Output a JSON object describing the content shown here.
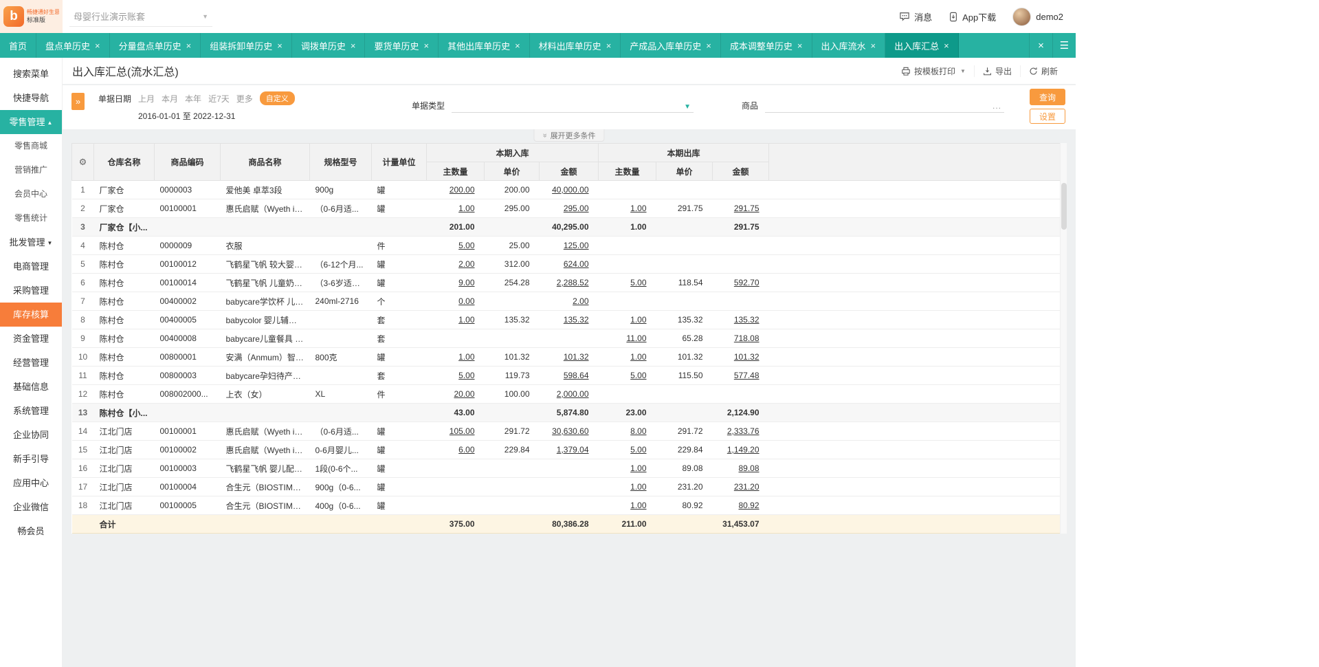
{
  "colors": {
    "teal": "#27b2a2",
    "tealdark": "#0e9a8a",
    "orange": "#f89a3e",
    "orangedeep": "#f77d3a"
  },
  "topbar": {
    "logo": {
      "icon_glyph": "b",
      "brand": "畅捷通好生意",
      "edition": "标准版"
    },
    "account": "母婴行业演示账套",
    "messages_label": "消息",
    "app_download_label": "App下载",
    "username": "demo2"
  },
  "tabbar": {
    "tabs": [
      {
        "label": "首页",
        "closable": false,
        "active": false
      },
      {
        "label": "盘点单历史",
        "closable": true,
        "active": false
      },
      {
        "label": "分量盘点单历史",
        "closable": true,
        "active": false
      },
      {
        "label": "组装拆卸单历史",
        "closable": true,
        "active": false
      },
      {
        "label": "调拨单历史",
        "closable": true,
        "active": false
      },
      {
        "label": "要货单历史",
        "closable": true,
        "active": false
      },
      {
        "label": "其他出库单历史",
        "closable": true,
        "active": false
      },
      {
        "label": "材料出库单历史",
        "closable": true,
        "active": false
      },
      {
        "label": "产成品入库单历史",
        "closable": true,
        "active": false
      },
      {
        "label": "成本调整单历史",
        "closable": true,
        "active": false
      },
      {
        "label": "出入库流水",
        "closable": true,
        "active": false
      },
      {
        "label": "出入库汇总",
        "closable": true,
        "active": true
      }
    ],
    "close_all_glyph": "×",
    "tab_menu_glyph": "☰"
  },
  "sidebar": {
    "items": [
      {
        "label": "搜索菜单",
        "type": "plain"
      },
      {
        "label": "快捷导航",
        "type": "plain"
      },
      {
        "label": "零售管理",
        "type": "group-open"
      },
      {
        "label": "零售商城",
        "type": "sub"
      },
      {
        "label": "营销推广",
        "type": "sub"
      },
      {
        "label": "会员中心",
        "type": "sub"
      },
      {
        "label": "零售统计",
        "type": "sub"
      },
      {
        "label": "批发管理",
        "type": "group-closed"
      },
      {
        "label": "电商管理",
        "type": "plain"
      },
      {
        "label": "采购管理",
        "type": "plain"
      },
      {
        "label": "库存核算",
        "type": "active"
      },
      {
        "label": "资金管理",
        "type": "plain"
      },
      {
        "label": "经营管理",
        "type": "plain"
      },
      {
        "label": "基础信息",
        "type": "plain"
      },
      {
        "label": "系统管理",
        "type": "plain"
      },
      {
        "label": "企业协同",
        "type": "plain"
      },
      {
        "label": "新手引导",
        "type": "plain"
      },
      {
        "label": "应用中心",
        "type": "plain"
      },
      {
        "label": "企业微信",
        "type": "plain"
      },
      {
        "label": "畅会员",
        "type": "plain"
      }
    ]
  },
  "page": {
    "title": "出入库汇总(流水汇总)",
    "toolbar": {
      "print": "按模板打印",
      "export": "导出",
      "refresh": "刷新"
    }
  },
  "filters": {
    "collapse_glyph": "»",
    "date_label": "单据日期",
    "date_quick": {
      "last_month": "上月",
      "this_month": "本月",
      "this_year": "本年",
      "last7": "近7天",
      "more": "更多"
    },
    "date_custom_badge": "自定义",
    "date_range": "2016-01-01 至 2022-12-31",
    "doc_type_label": "单据类型",
    "product_label": "商品",
    "product_more_glyph": "...",
    "query_button": "查询",
    "settings_button": "设置",
    "expand_more": "展开更多条件"
  },
  "table": {
    "columns": {
      "warehouse": "仓库名称",
      "code": "商品编码",
      "name": "商品名称",
      "spec": "规格型号",
      "unit": "计量单位",
      "in_group": "本期入库",
      "out_group": "本期出库",
      "qty": "主数量",
      "price": "单价",
      "amount": "金额",
      "gear_glyph": "⚙"
    },
    "rows": [
      {
        "n": "1",
        "type": "data",
        "wh": "厂家仓",
        "code": "0000003",
        "name": "爱他美 卓萃3段",
        "spec": "900g",
        "unit": "罐",
        "iq": "200.00",
        "ip": "200.00",
        "ia": "40,000.00",
        "oq": "",
        "op": "",
        "oa": ""
      },
      {
        "n": "2",
        "type": "data",
        "wh": "厂家仓",
        "code": "00100001",
        "name": "惠氏启赋（Wyeth illu...",
        "spec": "（0-6月适...",
        "unit": "罐",
        "iq": "1.00",
        "ip": "295.00",
        "ia": "295.00",
        "oq": "1.00",
        "op": "291.75",
        "oa": "291.75"
      },
      {
        "n": "3",
        "type": "subtotal",
        "wh": "厂家仓【小...",
        "code": "",
        "name": "",
        "spec": "",
        "unit": "",
        "iq": "201.00",
        "ip": "",
        "ia": "40,295.00",
        "oq": "1.00",
        "op": "",
        "oa": "291.75"
      },
      {
        "n": "4",
        "type": "data",
        "wh": "陈村仓",
        "code": "0000009",
        "name": "衣服",
        "spec": "",
        "unit": "件",
        "iq": "5.00",
        "ip": "25.00",
        "ia": "125.00",
        "oq": "",
        "op": "",
        "oa": ""
      },
      {
        "n": "5",
        "type": "data",
        "wh": "陈村仓",
        "code": "00100012",
        "name": "飞鹤星飞帆 较大婴儿配...",
        "spec": "（6-12个月...",
        "unit": "罐",
        "iq": "2.00",
        "ip": "312.00",
        "ia": "624.00",
        "oq": "",
        "op": "",
        "oa": ""
      },
      {
        "n": "6",
        "type": "data",
        "wh": "陈村仓",
        "code": "00100014",
        "name": "飞鹤星飞帆 儿童奶粉 4...",
        "spec": "（3-6岁适用)...",
        "unit": "罐",
        "iq": "9.00",
        "ip": "254.28",
        "ia": "2,288.52",
        "oq": "5.00",
        "op": "118.54",
        "oa": "592.70"
      },
      {
        "n": "7",
        "type": "data",
        "wh": "陈村仓",
        "code": "00400002",
        "name": "babycare学饮杯 儿童...",
        "spec": "240ml-2716",
        "unit": "个",
        "iq": "0.00",
        "ip": "",
        "ia": "2.00",
        "oq": "",
        "op": "",
        "oa": ""
      },
      {
        "n": "8",
        "type": "data",
        "wh": "陈村仓",
        "code": "00400005",
        "name": "babycolor 婴儿辅食机...",
        "spec": "",
        "unit": "套",
        "iq": "1.00",
        "ip": "135.32",
        "ia": "135.32",
        "oq": "1.00",
        "op": "135.32",
        "oa": "135.32"
      },
      {
        "n": "9",
        "type": "data",
        "wh": "陈村仓",
        "code": "00400008",
        "name": "babycare儿童餐具 婴...",
        "spec": "",
        "unit": "套",
        "iq": "",
        "ip": "",
        "ia": "",
        "oq": "11.00",
        "op": "65.28",
        "oa": "718.08"
      },
      {
        "n": "10",
        "type": "data",
        "wh": "陈村仓",
        "code": "00800001",
        "name": "安满（Anmum）智孕...",
        "spec": "800克",
        "unit": "罐",
        "iq": "1.00",
        "ip": "101.32",
        "ia": "101.32",
        "oq": "1.00",
        "op": "101.32",
        "oa": "101.32"
      },
      {
        "n": "11",
        "type": "data",
        "wh": "陈村仓",
        "code": "00800003",
        "name": "babycare孕妇待产包 ...",
        "spec": "",
        "unit": "套",
        "iq": "5.00",
        "ip": "119.73",
        "ia": "598.64",
        "oq": "5.00",
        "op": "115.50",
        "oa": "577.48"
      },
      {
        "n": "12",
        "type": "data",
        "wh": "陈村仓",
        "code": "008002000...",
        "name": "上衣（女）",
        "spec": "XL",
        "unit": "件",
        "iq": "20.00",
        "ip": "100.00",
        "ia": "2,000.00",
        "oq": "",
        "op": "",
        "oa": ""
      },
      {
        "n": "13",
        "type": "subtotal",
        "wh": "陈村仓【小...",
        "code": "",
        "name": "",
        "spec": "",
        "unit": "",
        "iq": "43.00",
        "ip": "",
        "ia": "5,874.80",
        "oq": "23.00",
        "op": "",
        "oa": "2,124.90"
      },
      {
        "n": "14",
        "type": "data",
        "wh": "江北门店",
        "code": "00100001",
        "name": "惠氏启赋（Wyeth illu...",
        "spec": "（0-6月适...",
        "unit": "罐",
        "iq": "105.00",
        "ip": "291.72",
        "ia": "30,630.60",
        "oq": "8.00",
        "op": "291.72",
        "oa": "2,333.76"
      },
      {
        "n": "15",
        "type": "data",
        "wh": "江北门店",
        "code": "00100002",
        "name": "惠氏启赋（Wyeth illu...",
        "spec": "0-6月婴儿...",
        "unit": "罐",
        "iq": "6.00",
        "ip": "229.84",
        "ia": "1,379.04",
        "oq": "5.00",
        "op": "229.84",
        "oa": "1,149.20"
      },
      {
        "n": "16",
        "type": "data",
        "wh": "江北门店",
        "code": "00100003",
        "name": "飞鹤星飞帆 婴儿配方奶...",
        "spec": "1段(0-6个...",
        "unit": "罐",
        "iq": "",
        "ip": "",
        "ia": "",
        "oq": "1.00",
        "op": "89.08",
        "oa": "89.08"
      },
      {
        "n": "17",
        "type": "data",
        "wh": "江北门店",
        "code": "00100004",
        "name": "合生元（BIOSTIME）...",
        "spec": "900g（0-6...",
        "unit": "罐",
        "iq": "",
        "ip": "",
        "ia": "",
        "oq": "1.00",
        "op": "231.20",
        "oa": "231.20"
      },
      {
        "n": "18",
        "type": "data",
        "wh": "江北门店",
        "code": "00100005",
        "name": "合生元（BIOSTIME）...",
        "spec": "400g（0-6...",
        "unit": "罐",
        "iq": "",
        "ip": "",
        "ia": "",
        "oq": "1.00",
        "op": "80.92",
        "oa": "80.92"
      }
    ],
    "footer": {
      "label": "合计",
      "iq": "375.00",
      "ia": "80,386.28",
      "oq": "211.00",
      "oa": "31,453.07"
    }
  }
}
